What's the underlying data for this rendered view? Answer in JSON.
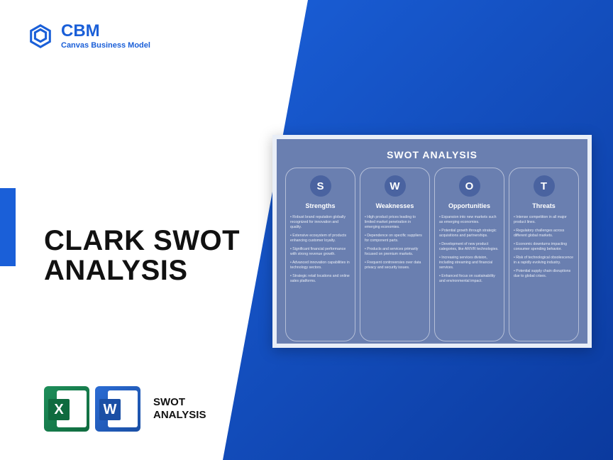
{
  "brand": {
    "title": "CBM",
    "subtitle": "Canvas Business Model",
    "color": "#1a5fd8"
  },
  "main_title_line1": "CLARK SWOT",
  "main_title_line2": "ANALYSIS",
  "footer": {
    "line1": "SWOT",
    "line2": "ANALYSIS",
    "excel_letter": "X",
    "word_letter": "W"
  },
  "swot": {
    "card_title": "SWOT ANALYSIS",
    "background_color": "#6a7fb0",
    "circle_color": "#4a63a0",
    "columns": [
      {
        "letter": "S",
        "heading": "Strengths",
        "items": [
          "• Robust brand reputation globally recognized for innovation and quality.",
          "• Extensive ecosystem of products enhancing customer loyalty.",
          "• Significant financial performance with strong revenue growth.",
          "• Advanced innovation capabilities in technology sectors.",
          "• Strategic retail locations and online sales platforms."
        ]
      },
      {
        "letter": "W",
        "heading": "Weaknesses",
        "items": [
          "• High product prices leading to limited market penetration in emerging economies.",
          "• Dependence on specific suppliers for component parts.",
          "• Products and services primarily focused on premium markets.",
          "• Frequent controversies over data privacy and security issues."
        ]
      },
      {
        "letter": "O",
        "heading": "Opportunities",
        "items": [
          "• Expansion into new markets such as emerging economies.",
          "• Potential growth through strategic acquisitions and partnerships.",
          "• Development of new product categories, like AR/VR technologies.",
          "• Increasing services division, including streaming and financial services.",
          "• Enhanced focus on sustainability and environmental impact."
        ]
      },
      {
        "letter": "T",
        "heading": "Threats",
        "items": [
          "• Intense competition in all major product lines.",
          "• Regulatory challenges across different global markets.",
          "• Economic downturns impacting consumer spending behavior.",
          "• Risk of technological obsolescence in a rapidly evolving industry.",
          "• Potential supply chain disruptions due to global crises."
        ]
      }
    ]
  }
}
